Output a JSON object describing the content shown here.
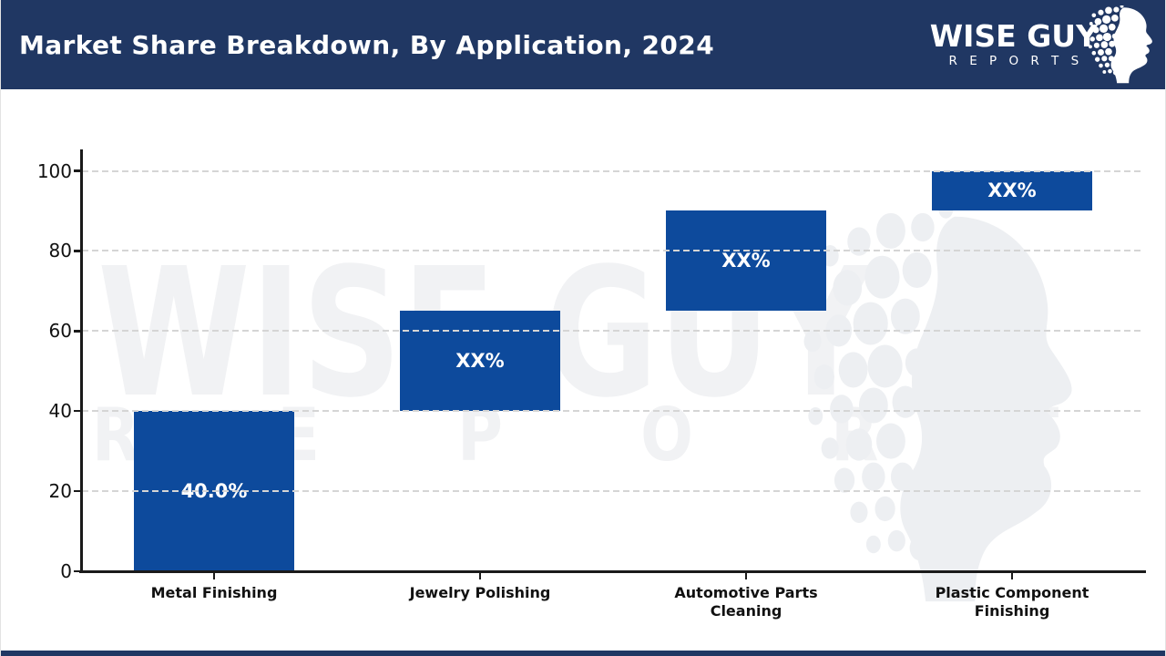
{
  "header": {
    "title": "Market Share Breakdown, By Application, 2024",
    "logo": {
      "line1": "WISE GUY",
      "line2": "R E P O R T S"
    }
  },
  "watermark": {
    "line1": "WISE GUY",
    "line2": "R E P O R T S"
  },
  "colors": {
    "header_bg": "#203763",
    "bar_blue": "#0d4a9c",
    "gridline_gray": "#d5d5d5",
    "watermark_gray": "#f1f2f4",
    "axis_black": "#1a1a1a",
    "bar_label_white": "#ffffff"
  },
  "chart_data": {
    "type": "bar",
    "subtype": "floating-waterfall",
    "title": "Market Share Breakdown, By Application, 2024",
    "categories": [
      "Metal Finishing",
      "Jewelry Polishing",
      "Automotive Parts Cleaning",
      "Plastic Component Finishing"
    ],
    "category_lines": [
      [
        "Metal Finishing"
      ],
      [
        "Jewelry Polishing"
      ],
      [
        "Automotive Parts",
        "Cleaning"
      ],
      [
        "Plastic Component",
        "Finishing"
      ]
    ],
    "segments": [
      {
        "category": "Metal Finishing",
        "start": 0,
        "end": 40,
        "value": 40,
        "label": "40.0%"
      },
      {
        "category": "Jewelry Polishing",
        "start": 40,
        "end": 65,
        "value": 25,
        "label": "XX%"
      },
      {
        "category": "Automotive Parts Cleaning",
        "start": 65,
        "end": 90,
        "value": 25,
        "label": "XX%"
      },
      {
        "category": "Plastic Component Finishing",
        "start": 90,
        "end": 100,
        "value": 10,
        "label": "XX%"
      }
    ],
    "xlabel": "",
    "ylabel": "",
    "ylim": [
      0,
      100
    ],
    "yticks": [
      0,
      20,
      40,
      60,
      80,
      100
    ],
    "grid": "horizontal-dashed, drawn over bars",
    "legend": "none"
  }
}
